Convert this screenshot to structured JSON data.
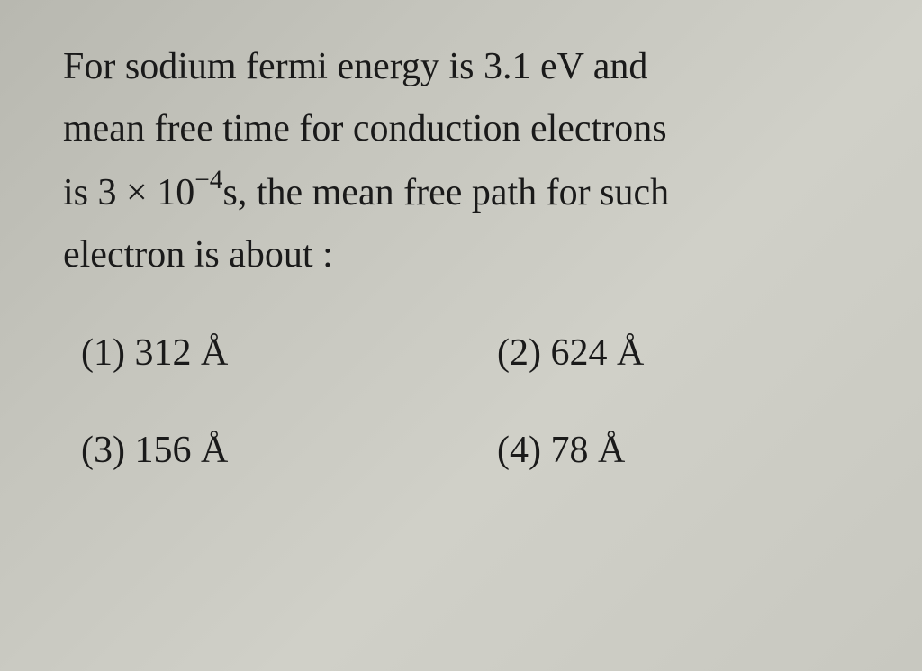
{
  "question": {
    "line1": "For sodium fermi energy is 3.1 eV and",
    "line2": "mean free time for conduction electrons",
    "line3_prefix": "is 3 × 10",
    "line3_exponent": "−4",
    "line3_suffix": "s, the mean free path for such",
    "line4": "electron is about :"
  },
  "options": {
    "opt1": {
      "label": "(1)",
      "value": "312",
      "unit": "Å"
    },
    "opt2": {
      "label": "(2)",
      "value": "624",
      "unit": "Å"
    },
    "opt3": {
      "label": "(3)",
      "value": "156",
      "unit": "Å"
    },
    "opt4": {
      "label": "(4)",
      "value": "78",
      "unit": "Å"
    }
  },
  "styling": {
    "background_color": "#c5c5bd",
    "text_color": "#1a1a1a",
    "font_family": "Times New Roman",
    "question_fontsize": 42,
    "option_fontsize": 42,
    "line_height": 1.65
  }
}
